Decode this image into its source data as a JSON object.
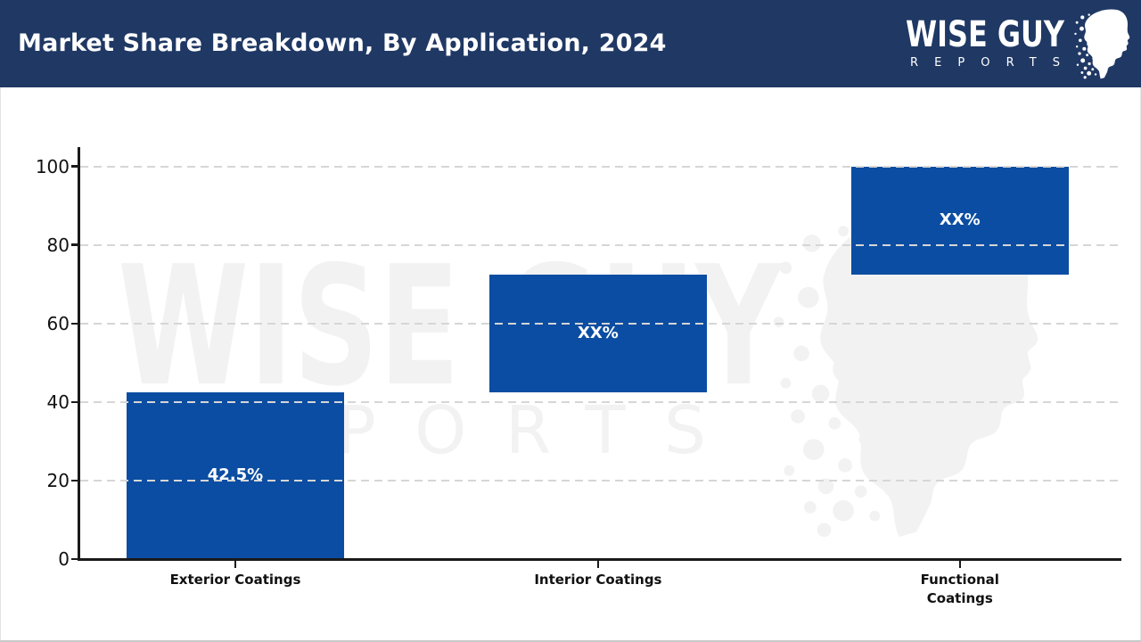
{
  "header": {
    "title": "Market Share Breakdown, By Application, 2024",
    "bg_color": "#1f3864",
    "logo_line1": "WISE GUY",
    "logo_line2": "REPORTS"
  },
  "watermark": {
    "line1": "WISE GUY",
    "line2": "REPORTS"
  },
  "chart_data": {
    "type": "bar",
    "subtype": "stacked-waterfall",
    "title": "Market Share Breakdown, By Application, 2024",
    "categories": [
      "Exterior Coatings",
      "Interior Coatings",
      "Functional Coatings"
    ],
    "category_labels": [
      "Exterior Coatings",
      "Interior Coatings",
      "Functional\nCoatings"
    ],
    "segments": [
      {
        "category": "Exterior Coatings",
        "start": 0,
        "end": 42.5,
        "label": "42.5%"
      },
      {
        "category": "Interior Coatings",
        "start": 42.5,
        "end": 72.5,
        "label": "XX%"
      },
      {
        "category": "Functional Coatings",
        "start": 72.5,
        "end": 100,
        "label": "XX%"
      }
    ],
    "ylim": [
      0,
      100
    ],
    "yticks": [
      0,
      20,
      40,
      60,
      80,
      100
    ],
    "grid": "horizontal-dashed",
    "legend": "none",
    "bar_color": "#0b4da2",
    "bar_label_color": "#ffffff",
    "axis_color": "#1a1a1a",
    "gridline_color": "#d6d6d6",
    "watermark_color": "#f2f2f2"
  }
}
